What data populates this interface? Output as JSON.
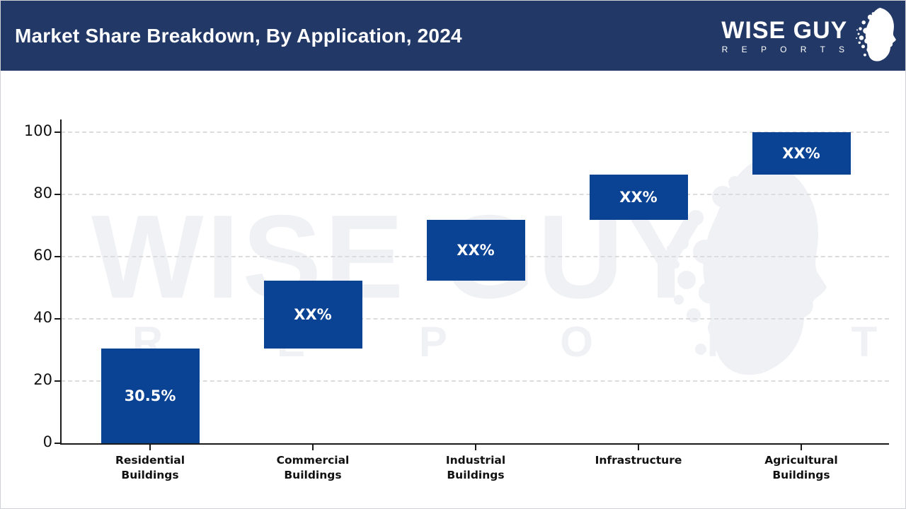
{
  "header": {
    "title": "Market Share Breakdown, By Application, 2024",
    "logo_name": "WISE GUY",
    "logo_sub": "R E P O R T S"
  },
  "watermark": {
    "text": "WISE GUY",
    "sub": "R E P O R T S"
  },
  "colors": {
    "header_bg": "#223866",
    "bar": "#0a4294",
    "grid": "#dcdcdc",
    "axis": "#1a1a1a",
    "bar_label": "#ffffff",
    "watermark": "#f0f1f4"
  },
  "chart_data": {
    "type": "bar",
    "subtype": "floating-waterfall",
    "title": "Market Share Breakdown, By Application, 2024",
    "categories": [
      [
        "Residential",
        "Buildings"
      ],
      [
        "Commercial",
        "Buildings"
      ],
      [
        "Industrial",
        "Buildings"
      ],
      [
        "Infrastructure"
      ],
      [
        "Agricultural",
        "Buildings"
      ]
    ],
    "segments": [
      {
        "category": "Residential Buildings",
        "start": 0,
        "end": 30.5,
        "label": "30.5%"
      },
      {
        "category": "Commercial Buildings",
        "start": 30.5,
        "end": 52.3,
        "label": "XX%"
      },
      {
        "category": "Industrial Buildings",
        "start": 52.3,
        "end": 71.9,
        "label": "XX%"
      },
      {
        "category": "Infrastructure",
        "start": 71.9,
        "end": 86.4,
        "label": "XX%"
      },
      {
        "category": "Agricultural Buildings",
        "start": 86.4,
        "end": 100,
        "label": "XX%"
      }
    ],
    "xlabel": "",
    "ylabel": "",
    "ylim": [
      0,
      105
    ],
    "yticks": [
      0,
      20,
      40,
      60,
      80,
      100
    ],
    "grid": "horizontal-dashed",
    "legend": "none"
  }
}
